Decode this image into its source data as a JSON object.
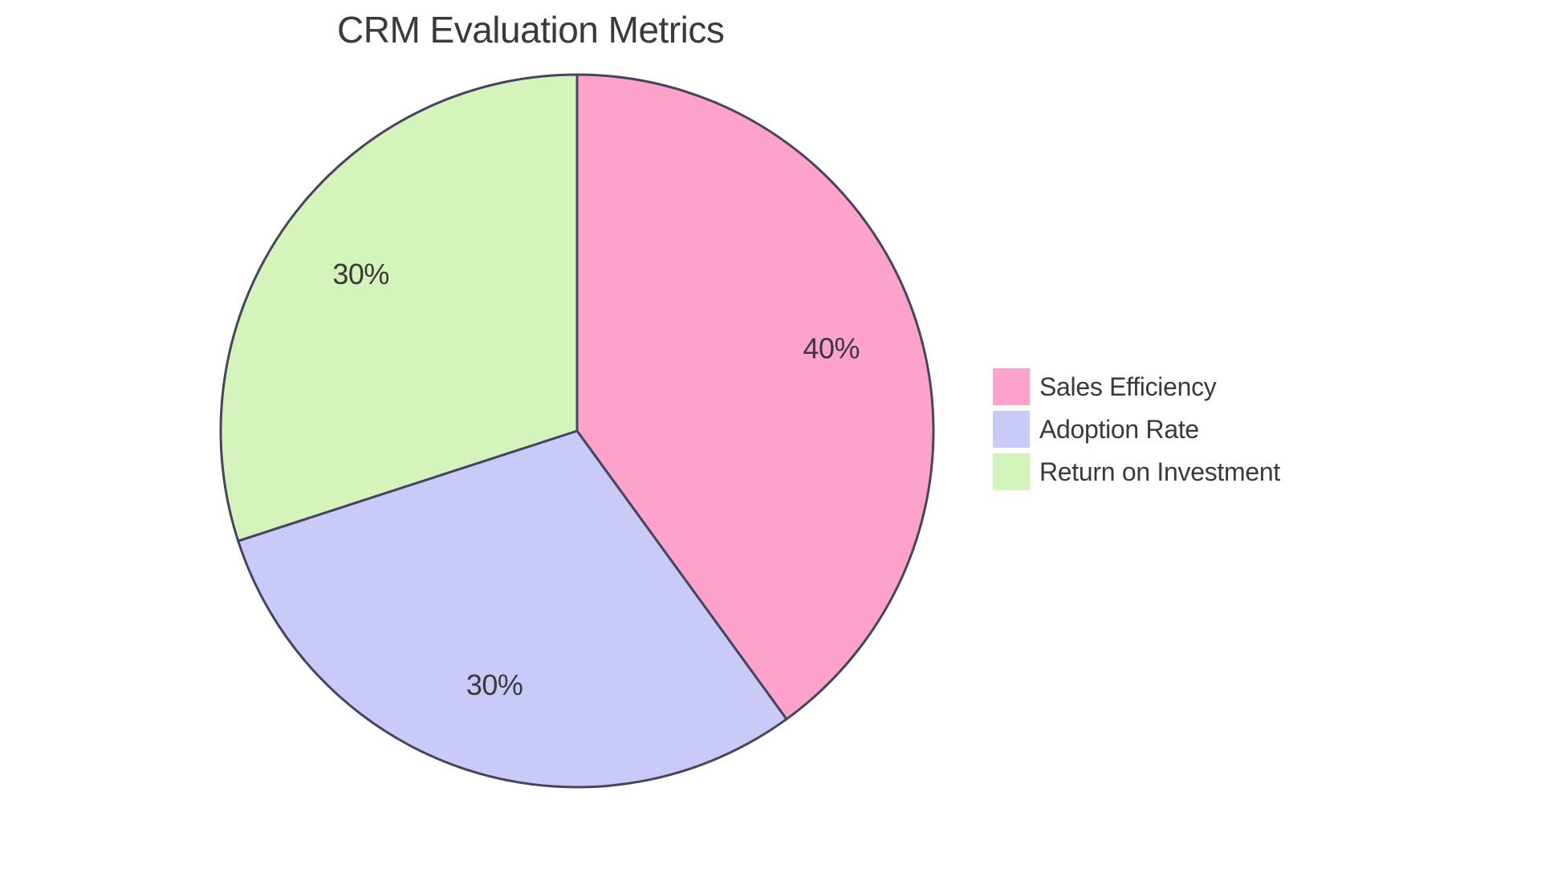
{
  "chart_data": {
    "type": "pie",
    "title": "CRM Evaluation Metrics",
    "segments": [
      {
        "label": "Sales Efficiency",
        "value": 40,
        "pct_label": "40%",
        "color": "#FCA2CB"
      },
      {
        "label": "Adoption Rate",
        "value": 30,
        "pct_label": "30%",
        "color": "#CACAF9"
      },
      {
        "label": "Return on Investment",
        "value": 30,
        "pct_label": "30%",
        "color": "#D5F4BB"
      }
    ],
    "start_angle": "top",
    "direction": "clockwise",
    "stroke_color": "#45455D",
    "text_color": "#3A3A3A",
    "background_color": "#FFFFFF",
    "legend_position": "right-center",
    "grid": false
  }
}
